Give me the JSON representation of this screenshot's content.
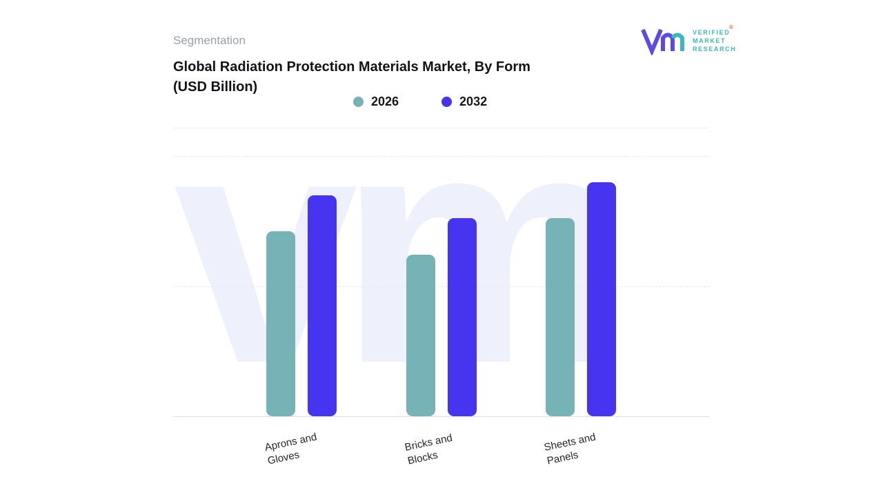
{
  "page": {
    "section_label": "Segmentation",
    "watermark": "vm"
  },
  "header": {
    "title": "Global Radiation Protection Materials Market, By Form",
    "subtitle": "(USD Billion)"
  },
  "legend": [
    {
      "label": "2026",
      "color": "#75b3b6"
    },
    {
      "label": "2032",
      "color": "#4734f0"
    }
  ],
  "logo": {
    "line1": "VERIFIED",
    "line2": "MARKET",
    "line3": "RESEARCH",
    "reg": "®"
  },
  "colors": {
    "series_2026": "#75b3b6",
    "series_2032": "#4734f0",
    "watermark": "#eef0fb",
    "gridline": "#e7e9ee"
  },
  "chart_data": {
    "type": "bar",
    "title": "Global Radiation Protection Materials Market, By Form",
    "ylabel": "USD Billion",
    "categories": [
      "Aprons and Gloves",
      "Bricks and Blocks",
      "Sheets and Panels"
    ],
    "series": [
      {
        "name": "2026",
        "color": "#75b3b6",
        "values": [
          71,
          62,
          76
        ]
      },
      {
        "name": "2032",
        "color": "#4734f0",
        "values": [
          85,
          76,
          90
        ]
      }
    ],
    "ylim": [
      0,
      100
    ],
    "grid": "horizontal-dashed",
    "legend_position": "top",
    "axis_tick_labels_visible": false
  }
}
